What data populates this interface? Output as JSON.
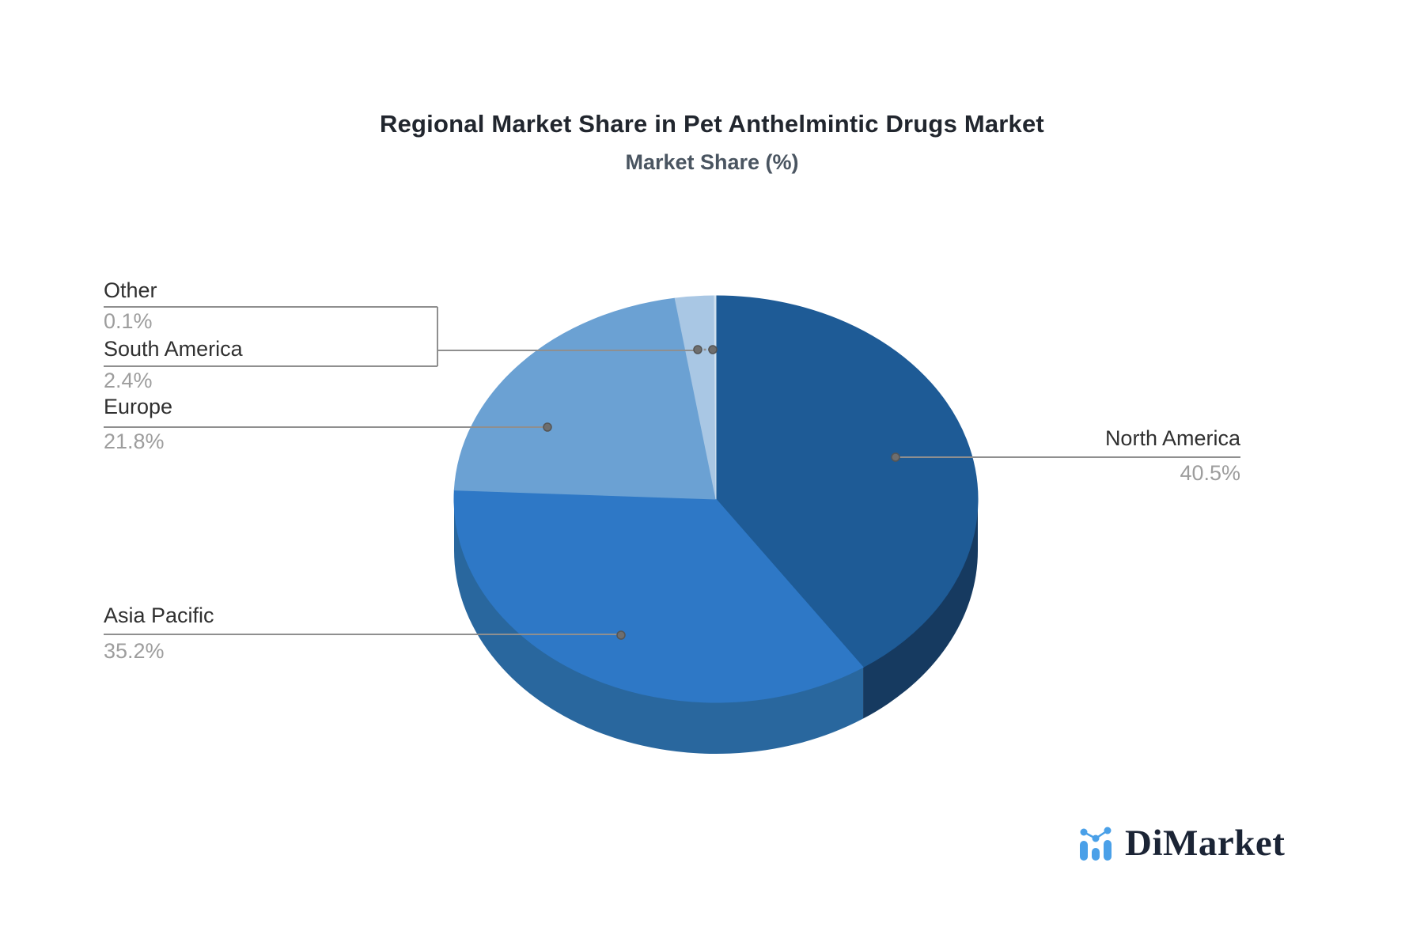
{
  "title": "Regional Market Share in Pet Anthelmintic Drugs Market",
  "subtitle": "Market Share (%)",
  "chart_data": {
    "type": "pie",
    "style": "3d",
    "start_angle_deg": 90,
    "direction": "clockwise",
    "categories": [
      "North America",
      "Asia Pacific",
      "Europe",
      "South America",
      "Other"
    ],
    "values": [
      40.5,
      35.2,
      21.8,
      2.4,
      0.1
    ],
    "labels_pct": [
      "40.5%",
      "35.2%",
      "21.8%",
      "2.4%",
      "0.1%"
    ],
    "unit": "%",
    "total": 100,
    "colors": {
      "slices": [
        "#1e5b96",
        "#2e78c6",
        "#6ba1d3",
        "#a9c7e4",
        "#cfe0ef"
      ],
      "sides": [
        "#163a60",
        "#29679e",
        "#4f7ba3",
        "#7e99b3",
        "#9fb3c4"
      ],
      "leader_line": "#8f8f8f",
      "leader_dot": "#6e6e6e",
      "label_text": "#303030",
      "percent_text": "#9d9d9d"
    },
    "legend_position": "callout-labels",
    "grid": false
  },
  "branding": {
    "name": "DiMarket",
    "icon": "bar-chart-with-trend-dots-icon",
    "icon_color": "#4aa0e8",
    "text_color": "#1b2435"
  }
}
